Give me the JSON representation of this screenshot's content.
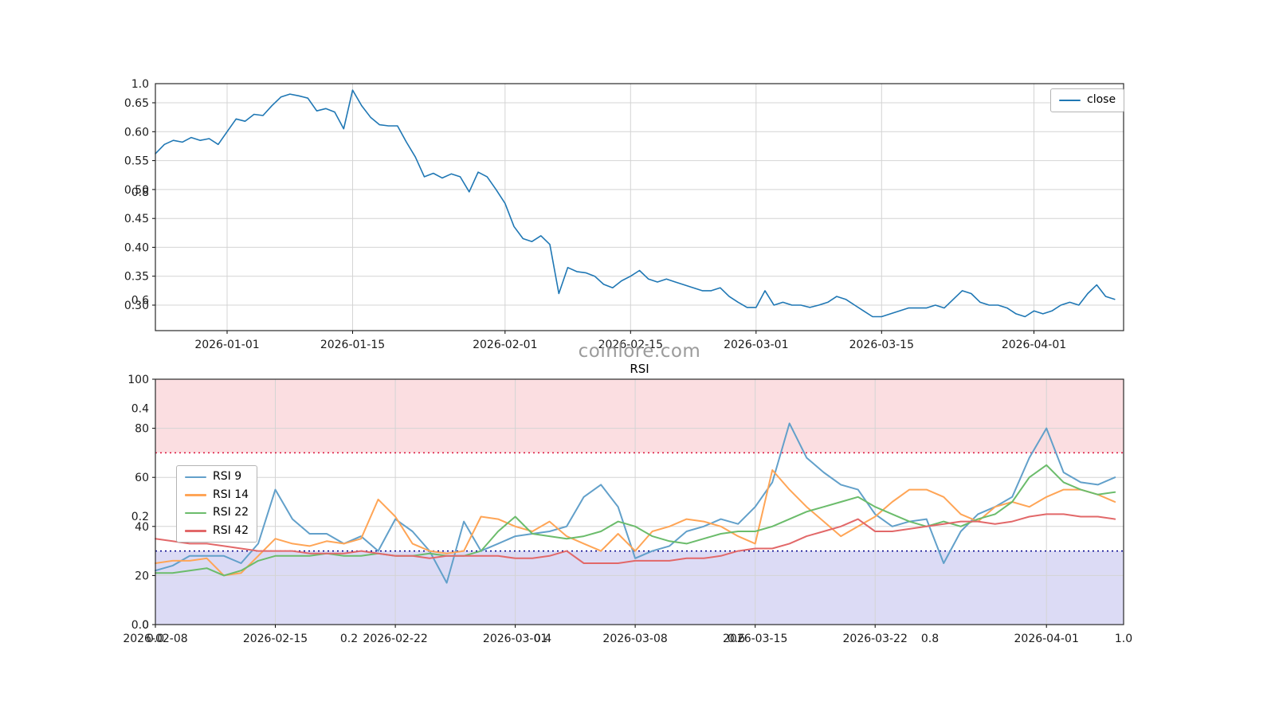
{
  "watermark": "coinlore.com",
  "figure": {
    "background": "#ffffff",
    "fraction_axis": {
      "x_ticks": [
        0.0,
        0.2,
        0.4,
        0.6,
        0.8,
        1.0
      ],
      "y_ticks": [
        0.0,
        0.2,
        0.4,
        0.6,
        0.8,
        1.0
      ]
    }
  },
  "chart_data": [
    {
      "type": "line",
      "name": "price-close",
      "title": "",
      "legend_position": "upper right",
      "grid": true,
      "x_start": "2025-12-24",
      "x_tick_labels": [
        "2026-01-01",
        "2026-01-15",
        "2026-02-01",
        "2026-02-15",
        "2026-03-01",
        "2026-03-15",
        "2026-04-01"
      ],
      "x_tick_days": [
        8,
        22,
        39,
        53,
        67,
        81,
        98
      ],
      "x_domain_days": 108,
      "y_ticks": [
        "0.65",
        "0.60",
        "0.55",
        "0.50",
        "0.45",
        "0.40",
        "0.35",
        "0.30"
      ],
      "ylim": [
        0.2559,
        0.6831
      ],
      "series": [
        {
          "name": "close",
          "color": "#1f77b4",
          "values": [
            0.562,
            0.578,
            0.585,
            0.582,
            0.59,
            0.585,
            0.588,
            0.578,
            0.6,
            0.622,
            0.618,
            0.63,
            0.628,
            0.645,
            0.66,
            0.665,
            0.662,
            0.658,
            0.636,
            0.64,
            0.634,
            0.605,
            0.672,
            0.645,
            0.625,
            0.612,
            0.61,
            0.61,
            0.582,
            0.556,
            0.522,
            0.528,
            0.52,
            0.527,
            0.522,
            0.496,
            0.53,
            0.522,
            0.5,
            0.476,
            0.436,
            0.415,
            0.41,
            0.42,
            0.405,
            0.32,
            0.365,
            0.358,
            0.356,
            0.35,
            0.336,
            0.33,
            0.342,
            0.35,
            0.36,
            0.345,
            0.34,
            0.345,
            0.34,
            0.335,
            0.33,
            0.325,
            0.325,
            0.33,
            0.315,
            0.305,
            0.296,
            0.296,
            0.325,
            0.3,
            0.305,
            0.3,
            0.3,
            0.296,
            0.3,
            0.305,
            0.315,
            0.31,
            0.3,
            0.29,
            0.28,
            0.28,
            0.285,
            0.29,
            0.295,
            0.295,
            0.295,
            0.3,
            0.295,
            0.31,
            0.325,
            0.32,
            0.305,
            0.3,
            0.3,
            0.295,
            0.285,
            0.28,
            0.29,
            0.285,
            0.29,
            0.3,
            0.305,
            0.3,
            0.32,
            0.335,
            0.315,
            0.31
          ]
        }
      ]
    },
    {
      "type": "line",
      "name": "rsi",
      "title": "RSI",
      "legend_position": "center left",
      "grid": true,
      "x_start": "2026-02-08",
      "x_tick_labels": [
        "2026-02-08",
        "2026-02-15",
        "2026-02-22",
        "2026-03-01",
        "2026-03-08",
        "2026-03-15",
        "2026-03-22",
        "2026-04-01"
      ],
      "x_tick_days": [
        0,
        7,
        14,
        21,
        28,
        35,
        42,
        52
      ],
      "x_domain_days": 56.5,
      "y_ticks": [
        "100",
        "80",
        "60",
        "40",
        "20",
        "0"
      ],
      "ylim": [
        0,
        100
      ],
      "overbought_level": 70,
      "oversold_level": 30,
      "band_colors": {
        "overbought": "#fbdee1",
        "oversold": "#dcdbf5"
      },
      "threshold_colors": {
        "overbought": "#dc143c",
        "oversold": "#00008b"
      },
      "series": [
        {
          "name": "RSI 9",
          "color": "#62a0ca",
          "values": [
            22,
            24,
            28,
            28,
            28,
            25,
            33,
            55,
            43,
            37,
            37,
            33,
            36,
            30,
            43,
            38,
            30,
            17,
            42,
            30,
            33,
            36,
            37,
            38,
            40,
            52,
            57,
            48,
            27,
            30,
            32,
            38,
            40,
            43,
            41,
            48,
            58,
            82,
            68,
            62,
            57,
            55,
            45,
            40,
            42,
            43,
            25,
            38,
            45,
            48,
            52,
            68,
            80,
            62,
            58,
            57,
            60
          ]
        },
        {
          "name": "RSI 14",
          "color": "#ffa556",
          "values": [
            25,
            26,
            26,
            27,
            20,
            21,
            28,
            35,
            33,
            32,
            34,
            33,
            35,
            51,
            44,
            33,
            30,
            29,
            30,
            44,
            43,
            40,
            38,
            42,
            36,
            33,
            30,
            37,
            30,
            38,
            40,
            43,
            42,
            40,
            36,
            33,
            63,
            55,
            48,
            42,
            36,
            40,
            44,
            50,
            55,
            55,
            52,
            45,
            42,
            48,
            50,
            48,
            52,
            55,
            55,
            53,
            50
          ]
        },
        {
          "name": "RSI 22",
          "color": "#6bbc6b",
          "values": [
            21,
            21,
            22,
            23,
            20,
            22,
            26,
            28,
            28,
            28,
            29,
            28,
            28,
            29,
            28,
            28,
            29,
            28,
            28,
            30,
            38,
            44,
            37,
            36,
            35,
            36,
            38,
            42,
            40,
            36,
            34,
            33,
            35,
            37,
            38,
            38,
            40,
            43,
            46,
            48,
            50,
            52,
            48,
            45,
            42,
            40,
            42,
            40,
            43,
            45,
            50,
            60,
            65,
            58,
            55,
            53,
            54
          ]
        },
        {
          "name": "RSI 42",
          "color": "#e26869",
          "values": [
            35,
            34,
            33,
            33,
            32,
            31,
            30,
            30,
            30,
            29,
            29,
            29,
            30,
            29,
            28,
            28,
            27,
            28,
            28,
            28,
            28,
            27,
            27,
            28,
            30,
            25,
            25,
            25,
            26,
            26,
            26,
            27,
            27,
            28,
            30,
            31,
            31,
            33,
            36,
            38,
            40,
            43,
            38,
            38,
            39,
            40,
            41,
            42,
            42,
            41,
            42,
            44,
            45,
            45,
            44,
            44,
            43
          ]
        }
      ]
    }
  ]
}
